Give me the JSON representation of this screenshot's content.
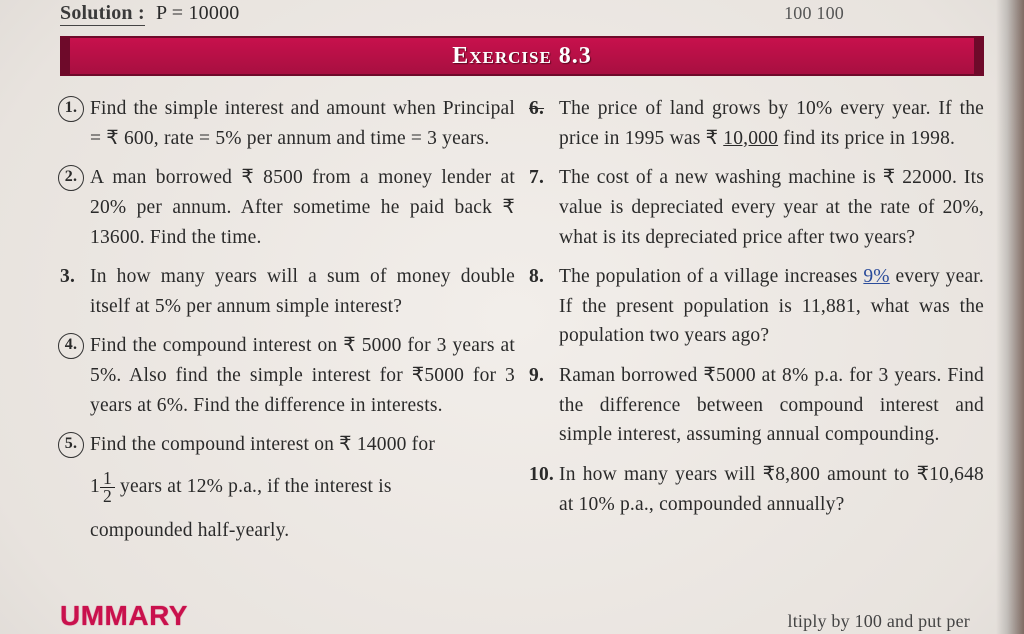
{
  "top": {
    "solution_label": "Solution :",
    "p_equation": "P = 10000",
    "top_right": "100   100"
  },
  "banner": {
    "title": "Exercise 8.3"
  },
  "left_questions": [
    {
      "n": "1.",
      "circled": true,
      "text": "Find the simple interest and amount when Principal = ₹ 600, rate = 5% per annum and time = 3 years."
    },
    {
      "n": "2.",
      "circled": true,
      "text": "A man borrowed ₹ 8500 from a money lender at 20% per annum. After sometime he paid back ₹ 13600. Find the time."
    },
    {
      "n": "3.",
      "circled": false,
      "text": "In how many years will a sum of money double itself at 5% per annum simple interest?"
    },
    {
      "n": "4.",
      "circled": true,
      "text": "Find the compound interest on ₹ 5000 for 3 years at 5%. Also find the simple interest for ₹5000 for 3 years at 6%. Find the difference in interests."
    },
    {
      "n": "5.",
      "circled": true,
      "text_a": "Find the compound interest on ₹ 14000 for",
      "text_b_html": "1<span style='display:inline-block;vertical-align:middle;text-align:center;line-height:1;font-size:0.9em;'><span style='display:block;border-bottom:1px solid #222;padding:0 3px;'>1</span><span style='display:block;padding:0 3px;'>2</span></span> years at 12% p.a., if the interest is",
      "text_c": "compounded half-yearly."
    }
  ],
  "right_questions": [
    {
      "n": "6.",
      "strike_num": true,
      "text_html": "The price of land grows by 10% every year. If the price in 1995 was ₹ <span class='u'>10,000</span> find its price in 1998."
    },
    {
      "n": "7.",
      "text": "The cost of a new washing machine is ₹ 22000. Its value is depreciated every year at the rate of 20%, what is its depreciated price after two years?"
    },
    {
      "n": "8.",
      "text_html": "The population of a village increases <span class='u pen-blue'>9%</span> every year. If the present population is 11,881, what was the population two years ago?"
    },
    {
      "n": "9.",
      "text": "Raman borrowed ₹5000 at 8% p.a. for 3 years. Find the difference between compound interest and simple interest, assuming annual compounding."
    },
    {
      "n": "10.",
      "text": "In how many years will ₹8,800 amount to ₹10,648 at 10% p.a., compounded annually?"
    }
  ],
  "bottom": {
    "summary": "UMMARY",
    "right_fragment": "ltiply by 100 and put per"
  }
}
